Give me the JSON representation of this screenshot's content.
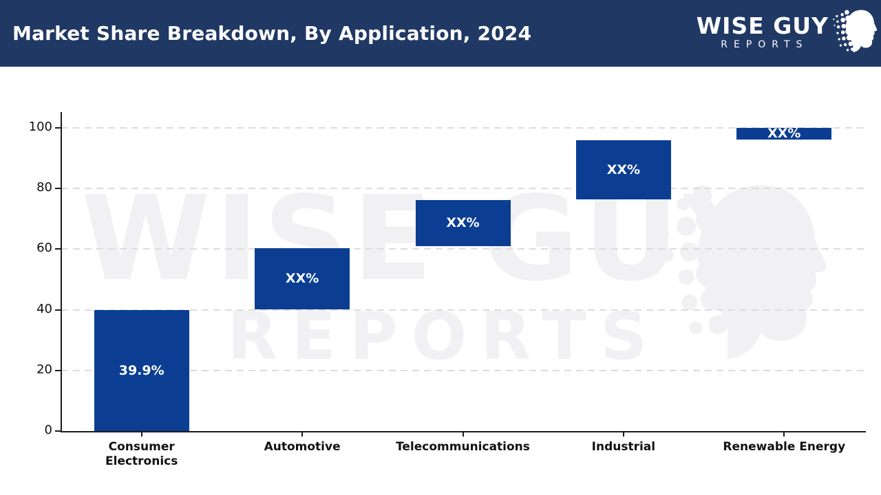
{
  "header": {
    "title": "Market Share Breakdown, By Application, 2024",
    "logo": {
      "name_top": "WISE GUY",
      "name_bottom": "REPORTS"
    }
  },
  "watermark": {
    "line1": "WISE GUY",
    "line2": "REPORTS"
  },
  "chart_data": {
    "type": "bar",
    "subtype": "waterfall",
    "title": "Market Share Breakdown, By Application, 2024",
    "categories": [
      "Consumer Electronics",
      "Automotive",
      "Telecommunications",
      "Industrial",
      "Renewable Energy"
    ],
    "x_tick_label_lines": [
      [
        "Consumer",
        "Electronics"
      ],
      [
        "Automotive"
      ],
      [
        "Telecommunications"
      ],
      [
        "Industrial"
      ],
      [
        "Renewable Energy"
      ]
    ],
    "segments": [
      {
        "category": "Consumer Electronics",
        "label": "39.9%",
        "start": 0,
        "end": 39.9
      },
      {
        "category": "Automotive",
        "label": "XX%",
        "start": 40.2,
        "end": 60.3
      },
      {
        "category": "Telecommunications",
        "label": "XX%",
        "start": 60.9,
        "end": 76.1
      },
      {
        "category": "Industrial",
        "label": "XX%",
        "start": 76.4,
        "end": 95.9
      },
      {
        "category": "Renewable Energy",
        "label": "XX%",
        "start": 96.2,
        "end": 100
      }
    ],
    "xlabel": "",
    "ylabel": "",
    "y_ticks": [
      0,
      20,
      40,
      60,
      80,
      100
    ],
    "ylim": [
      0,
      105
    ],
    "grid": "horizontal-dashed",
    "legend": null,
    "colors": {
      "bar": "#0b3e92",
      "grid": "#dcdcdc",
      "axis": "#1a1a1a",
      "bar_label": "#ffffff"
    }
  },
  "colors": {
    "header_bg": "#203864",
    "page_bg": "#ffffff",
    "watermark": "#f1f1f3"
  }
}
